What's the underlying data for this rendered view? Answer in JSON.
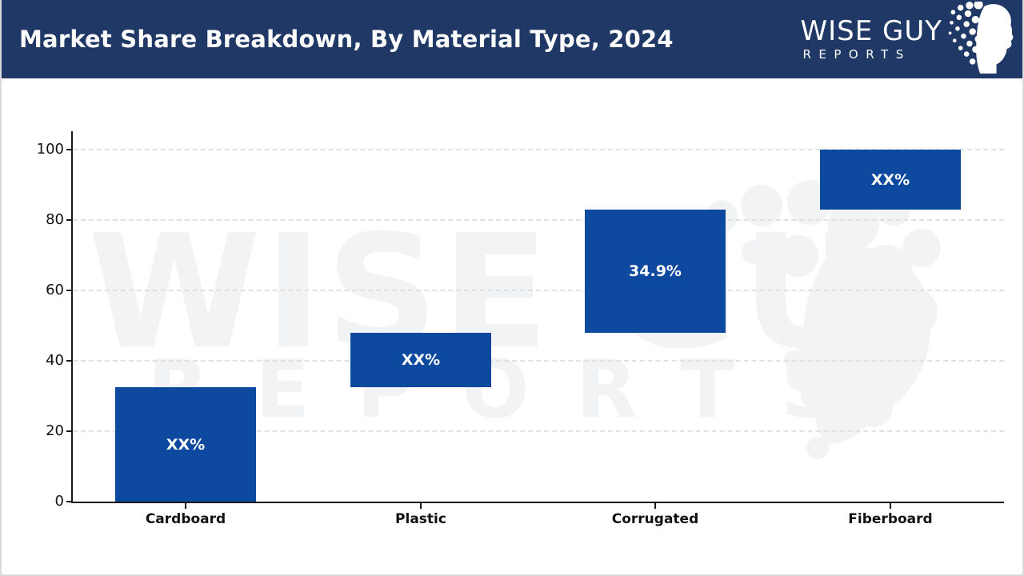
{
  "header": {
    "title": "Market Share Breakdown, By Material Type, 2024",
    "background_color": "#1F3866",
    "logo": {
      "line1": "WISE GUY",
      "line2": "REPORTS"
    }
  },
  "watermark": {
    "line1": "WISE GU",
    "line2": "REPORTS"
  },
  "colors": {
    "bar": "#0D4A9F",
    "axis": "#1A1A1A",
    "grid": "#E0E0E0",
    "watermark": "#F2F3F5",
    "frame": "#D9D9D9",
    "bar_label_text": "#FFFFFF"
  },
  "chart_data": {
    "type": "bar",
    "subtype": "waterfall",
    "title": "Market Share Breakdown, By Material Type, 2024",
    "categories": [
      "Cardboard",
      "Plastic",
      "Corrugated",
      "Fiberboard"
    ],
    "segments": [
      {
        "category": "Cardboard",
        "start": 0,
        "end": 32.5,
        "label": "XX%"
      },
      {
        "category": "Plastic",
        "start": 32.5,
        "end": 48.0,
        "label": "XX%"
      },
      {
        "category": "Corrugated",
        "start": 48.0,
        "end": 82.9,
        "label": "34.9%"
      },
      {
        "category": "Fiberboard",
        "start": 82.9,
        "end": 100,
        "label": "XX%"
      }
    ],
    "y_ticks": [
      0,
      20,
      40,
      60,
      80,
      100
    ],
    "ylim": [
      0,
      105
    ],
    "xlabel": "",
    "ylabel": "",
    "grid": "horizontal-dashed",
    "legend": "none",
    "bar_color": "#0D4A9F"
  }
}
